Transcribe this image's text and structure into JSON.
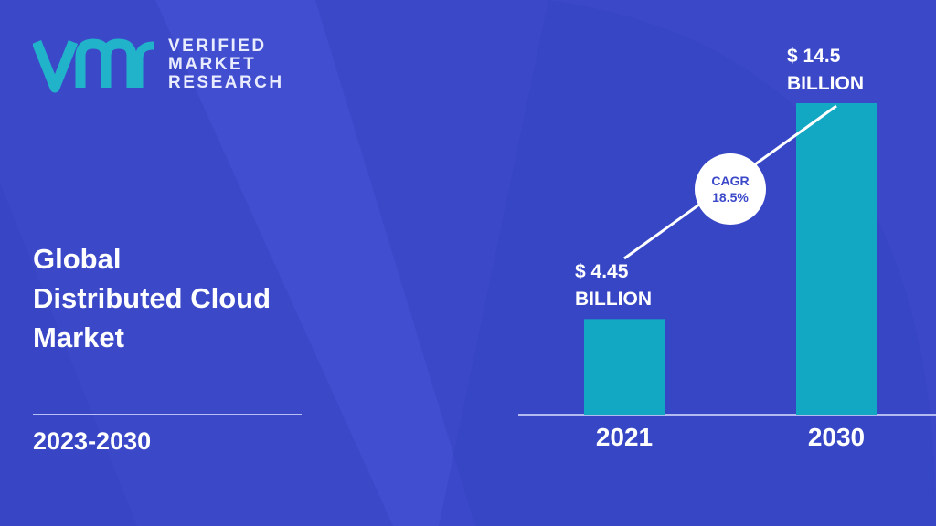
{
  "brand": {
    "line1": "VERIFIED",
    "line2": "MARKET",
    "line3": "RESEARCH"
  },
  "title": {
    "line1": "Global",
    "line2": "Distributed Cloud",
    "line3": "Market"
  },
  "period": "2023-2030",
  "cagr": {
    "label": "CAGR",
    "value": "18.5%"
  },
  "colors": {
    "background": "#3b49c9",
    "bar": "#12a8c4",
    "logo": "#20b3c9"
  },
  "chart_data": {
    "type": "bar",
    "categories": [
      "2021",
      "2030"
    ],
    "values": [
      4.45,
      14.5
    ],
    "value_labels": [
      {
        "line1": "$ 4.45",
        "line2": "BILLION"
      },
      {
        "line1": "$ 14.5",
        "line2": "BILLION"
      }
    ],
    "title": "",
    "xlabel": "",
    "ylabel": "",
    "ylim": [
      0,
      14.5
    ]
  }
}
